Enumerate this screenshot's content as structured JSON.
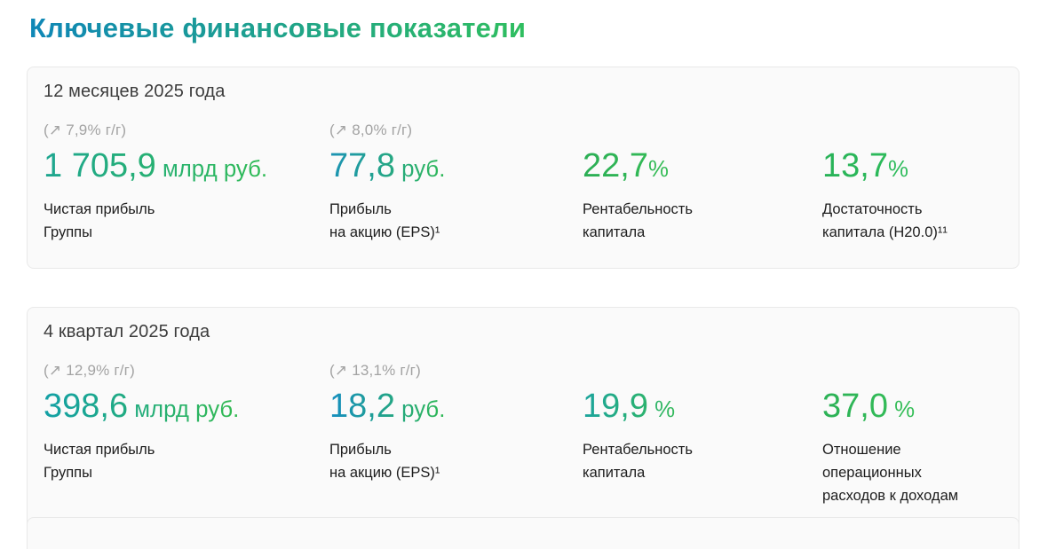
{
  "title": {
    "text": "Ключевые финансовые показатели"
  },
  "theme": {
    "title_gradient": {
      "from": "#0f87b7",
      "to": "#2fbe5f"
    },
    "growth_color": "#a3a3a3",
    "label_color": "#1d1d1d",
    "card_bg": "#fafafa",
    "card_border": "#e9e9e9"
  },
  "sections": [
    {
      "period": "12 месяцев 2025 года",
      "metrics": [
        {
          "growth": "(↗ 7,9% г/г)",
          "value": "1 705,9",
          "unit": " млрд руб.",
          "label": "Чистая прибыль\nГруппы",
          "gradient": {
            "from": "#1ea690",
            "to": "#2fbb54"
          }
        },
        {
          "growth": "(↗ 8,0% г/г)",
          "value": "77,8",
          "unit": " руб.",
          "label": "Прибыль\nна акцию (EPS)¹",
          "gradient": {
            "from": "#1b93b5",
            "to": "#2fb957"
          }
        },
        {
          "growth": "",
          "value": "22,7",
          "unit": "%",
          "label": "Рентабельность\nкапитала",
          "gradient": {
            "from": "#2bae55",
            "to": "#35bd56"
          }
        },
        {
          "growth": "",
          "value": "13,7",
          "unit": "%",
          "label": "Достаточность\nкапитала (Н20.0)¹¹",
          "gradient": {
            "from": "#27b257",
            "to": "#2fbd5c"
          }
        }
      ]
    },
    {
      "period": "4 квартал 2025 года",
      "metrics": [
        {
          "growth": "(↗ 12,9% г/г)",
          "value": "398,6",
          "unit": " млрд руб.",
          "label": "Чистая прибыль\nГруппы",
          "gradient": {
            "from": "#13a0a6",
            "to": "#33ba50"
          }
        },
        {
          "growth": "(↗ 13,1% г/г)",
          "value": "18,2",
          "unit": " руб.",
          "label": "Прибыль\nна акцию (EPS)¹",
          "gradient": {
            "from": "#168ec0",
            "to": "#2fb953"
          }
        },
        {
          "growth": "",
          "value": "19,9",
          "unit": " %",
          "label": "Рентабельность\nкапитала",
          "gradient": {
            "from": "#1ba49d",
            "to": "#33b95a"
          }
        },
        {
          "growth": "",
          "value": "37,0",
          "unit": " %",
          "label": "Отношение\nоперационных\nрасходов к доходам",
          "gradient": {
            "from": "#2bb156",
            "to": "#36bf58"
          }
        }
      ]
    }
  ]
}
